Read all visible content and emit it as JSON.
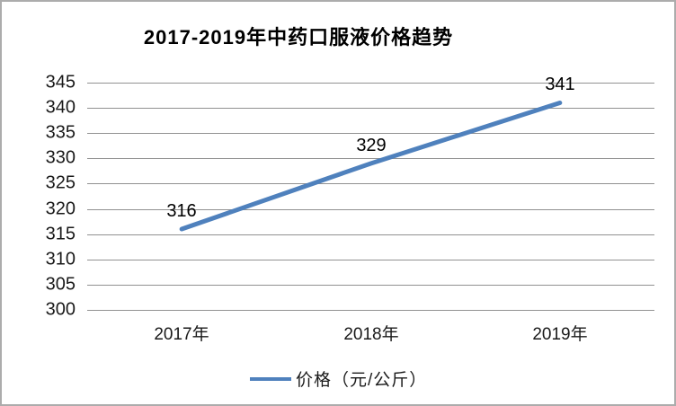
{
  "title": "2017-2019年中药口服液价格趋势",
  "legend": {
    "label": "价格（元/公斤）",
    "line_color": "#4F81BD"
  },
  "colors": {
    "series_line": "#4F81BD",
    "gridline": "#919191",
    "axis_line": "#919191",
    "text": "#000000",
    "background": "#FFFFFF"
  },
  "chart_data": {
    "type": "line",
    "title": "2017-2019年中药口服液价格趋势",
    "categories": [
      "2017年",
      "2018年",
      "2019年"
    ],
    "series": [
      {
        "name": "价格（元/公斤）",
        "values": [
          316,
          329,
          341
        ]
      }
    ],
    "data_labels": [
      "316",
      "329",
      "341"
    ],
    "xlabel": "",
    "ylabel": "",
    "ylim": [
      300,
      345
    ],
    "ytick_step": 5,
    "yticks": [
      300,
      305,
      310,
      315,
      320,
      325,
      330,
      335,
      340,
      345
    ],
    "grid": "horizontal",
    "legend_position": "bottom",
    "line_color": "#4F81BD",
    "marker": "none"
  }
}
